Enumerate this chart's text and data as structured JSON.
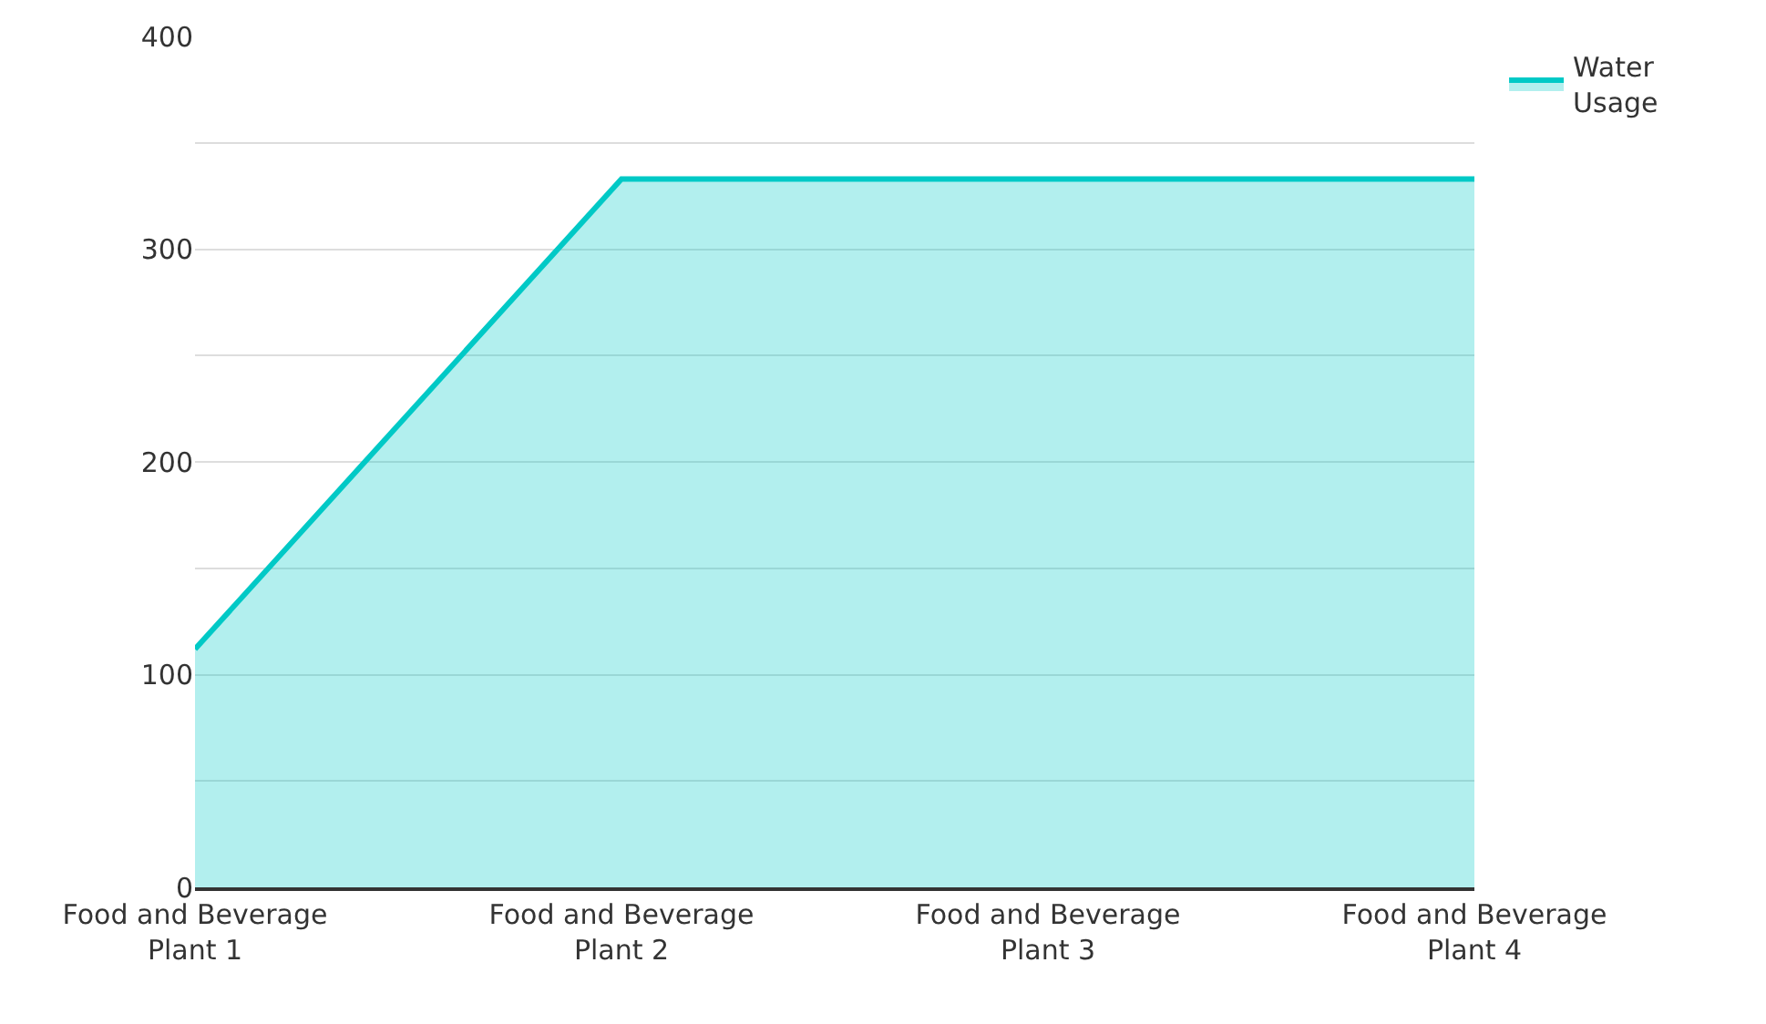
{
  "chart_data": {
    "type": "area",
    "categories": [
      "Food and Beverage Plant 1",
      "Food and Beverage Plant 2",
      "Food and Beverage Plant 3",
      "Food and Beverage Plant 4"
    ],
    "series": [
      {
        "name": "Water Usage",
        "color": "#00c9c6",
        "values": [
          112,
          333,
          333,
          333
        ]
      }
    ],
    "ylim": [
      0,
      400
    ],
    "yticks": [
      0,
      {
        "value": 50,
        "label": null
      },
      100,
      {
        "value": 150,
        "label": null
      },
      200,
      {
        "value": 250,
        "label": null
      },
      300,
      {
        "value": 350,
        "label": null
      },
      400
    ],
    "grid": "y",
    "legend": "top right"
  }
}
